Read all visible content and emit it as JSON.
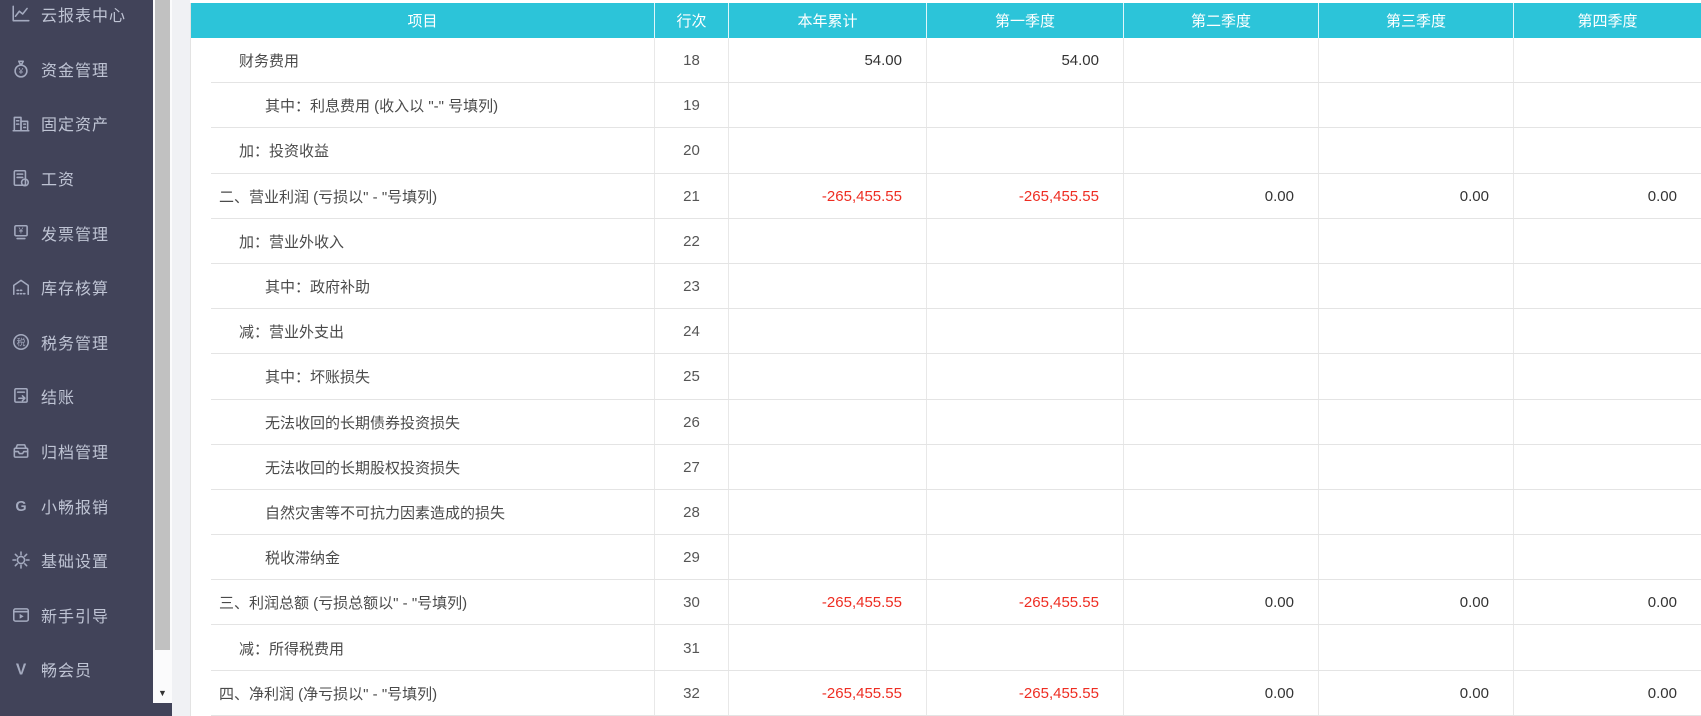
{
  "sidebar": {
    "items": [
      {
        "label": "云报表中心",
        "icon": "chart-line-icon"
      },
      {
        "label": "资金管理",
        "icon": "money-bag-icon"
      },
      {
        "label": "固定资产",
        "icon": "building-icon"
      },
      {
        "label": "工资",
        "icon": "payroll-icon"
      },
      {
        "label": "发票管理",
        "icon": "invoice-icon"
      },
      {
        "label": "库存核算",
        "icon": "warehouse-icon"
      },
      {
        "label": "税务管理",
        "icon": "tax-stamp-icon"
      },
      {
        "label": "结账",
        "icon": "ledger-icon"
      },
      {
        "label": "归档管理",
        "icon": "archive-icon"
      },
      {
        "label": "小畅报销",
        "icon": "reimburse-icon"
      },
      {
        "label": "基础设置",
        "icon": "gear-icon"
      },
      {
        "label": "新手引导",
        "icon": "video-guide-icon"
      },
      {
        "label": "畅会员",
        "icon": "member-v-icon"
      }
    ],
    "scrollbar_arrow": "▼"
  },
  "table": {
    "columns": [
      "项目",
      "行次",
      "本年累计",
      "第一季度",
      "第二季度",
      "第三季度",
      "第四季度"
    ],
    "rows": [
      {
        "label": "财务费用",
        "indent": 1,
        "line": "18",
        "ytd": "54.00",
        "q1": "54.00",
        "q2": "",
        "q3": "",
        "q4": ""
      },
      {
        "label": "其中：利息费用 (收入以 \"-\" 号填列)",
        "indent": 2,
        "line": "19",
        "ytd": "",
        "q1": "",
        "q2": "",
        "q3": "",
        "q4": ""
      },
      {
        "label": "加：投资收益",
        "indent": 1,
        "line": "20",
        "ytd": "",
        "q1": "",
        "q2": "",
        "q3": "",
        "q4": ""
      },
      {
        "label": "二、营业利润 (亏损以\" - \"号填列)",
        "indent": 0,
        "line": "21",
        "ytd": "-265,455.55",
        "q1": "-265,455.55",
        "q2": "0.00",
        "q3": "0.00",
        "q4": "0.00"
      },
      {
        "label": "加：营业外收入",
        "indent": 1,
        "line": "22",
        "ytd": "",
        "q1": "",
        "q2": "",
        "q3": "",
        "q4": ""
      },
      {
        "label": "其中：政府补助",
        "indent": 2,
        "line": "23",
        "ytd": "",
        "q1": "",
        "q2": "",
        "q3": "",
        "q4": ""
      },
      {
        "label": "减：营业外支出",
        "indent": 1,
        "line": "24",
        "ytd": "",
        "q1": "",
        "q2": "",
        "q3": "",
        "q4": ""
      },
      {
        "label": "其中：坏账损失",
        "indent": 2,
        "line": "25",
        "ytd": "",
        "q1": "",
        "q2": "",
        "q3": "",
        "q4": ""
      },
      {
        "label": "无法收回的长期债券投资损失",
        "indent": 2,
        "line": "26",
        "ytd": "",
        "q1": "",
        "q2": "",
        "q3": "",
        "q4": ""
      },
      {
        "label": "无法收回的长期股权投资损失",
        "indent": 2,
        "line": "27",
        "ytd": "",
        "q1": "",
        "q2": "",
        "q3": "",
        "q4": ""
      },
      {
        "label": "自然灾害等不可抗力因素造成的损失",
        "indent": 2,
        "line": "28",
        "ytd": "",
        "q1": "",
        "q2": "",
        "q3": "",
        "q4": ""
      },
      {
        "label": "税收滞纳金",
        "indent": 2,
        "line": "29",
        "ytd": "",
        "q1": "",
        "q2": "",
        "q3": "",
        "q4": ""
      },
      {
        "label": "三、利润总额 (亏损总额以\" - \"号填列)",
        "indent": 0,
        "line": "30",
        "ytd": "-265,455.55",
        "q1": "-265,455.55",
        "q2": "0.00",
        "q3": "0.00",
        "q4": "0.00"
      },
      {
        "label": "减：所得税费用",
        "indent": 1,
        "line": "31",
        "ytd": "",
        "q1": "",
        "q2": "",
        "q3": "",
        "q4": ""
      },
      {
        "label": "四、净利润 (净亏损以\" - \"号填列)",
        "indent": 0,
        "line": "32",
        "ytd": "-265,455.55",
        "q1": "-265,455.55",
        "q2": "0.00",
        "q3": "0.00",
        "q4": "0.00"
      }
    ]
  },
  "colors": {
    "header_accent": "#2cc4d9",
    "sidebar_bg": "#414359",
    "sidebar_text": "#bfc4d4",
    "negative_value": "#ee2d22",
    "row_border": "#e4e4e4"
  }
}
